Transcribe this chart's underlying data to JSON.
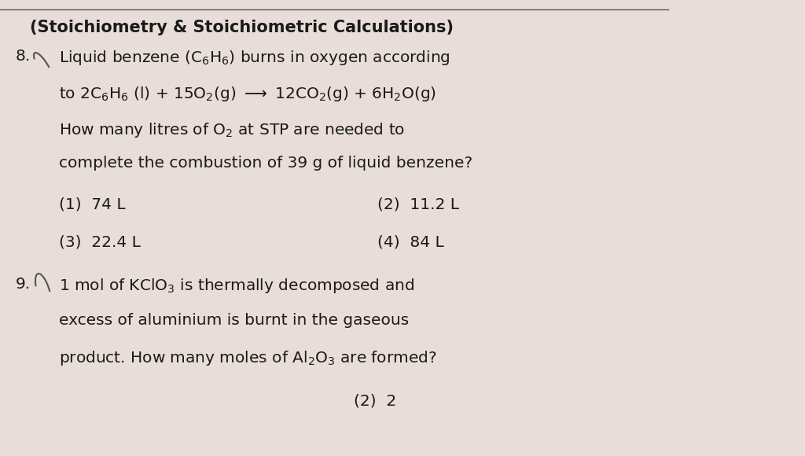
{
  "bg_color": "#e8ddd8",
  "text_color": "#1a1a1a",
  "title": "(Stoichiometry & Stoichiometric Calculations)",
  "q8_number": "8.",
  "q8_line1": "Liquid benzene (C",
  "q8_line1_sub1": "6",
  "q8_line1_mid": "H",
  "q8_line1_sub2": "6",
  "q8_line1_end": ") burns in oxygen according",
  "q8_line2_pre": "to 2C",
  "q8_line2_sub1": "6",
  "q8_line2_H": "H",
  "q8_line2_sub2": "6",
  "q8_line2_state": " (l) + 15O",
  "q8_line2_sub3": "2",
  "q8_line2_g1": "(g) ⟶ 12CO",
  "q8_line2_sub4": "2",
  "q8_line2_g2": "(g) + 6H",
  "q8_line2_sub5": "2",
  "q8_line2_end": "O(g)",
  "q8_line3": "How many litres of O",
  "q8_line3_sub": "2",
  "q8_line3_end": " at STP are needed to",
  "q8_line4": "complete the combustion of 39 g of liquid benzene?",
  "opt1": "(1)  74 L",
  "opt2": "(2)  11.2 L",
  "opt3": "(3)  22.4 L",
  "opt4": "(4)  84 L",
  "q9_number": "9.",
  "q9_line1": "1 mol of KClO",
  "q9_line1_sub": "3",
  "q9_line1_end": " is thermally decomposed and",
  "q9_line2": "excess of aluminium is burnt in the gaseous",
  "q9_line3": "product. How many moles of Al",
  "q9_line3_sub": "2",
  "q9_line3_O": "O",
  "q9_line3_sub2": "3",
  "q9_line3_end": " are formed?",
  "q9_ans": "(2)  2",
  "title_fontsize": 15,
  "body_fontsize": 14.5,
  "option_fontsize": 14.5
}
